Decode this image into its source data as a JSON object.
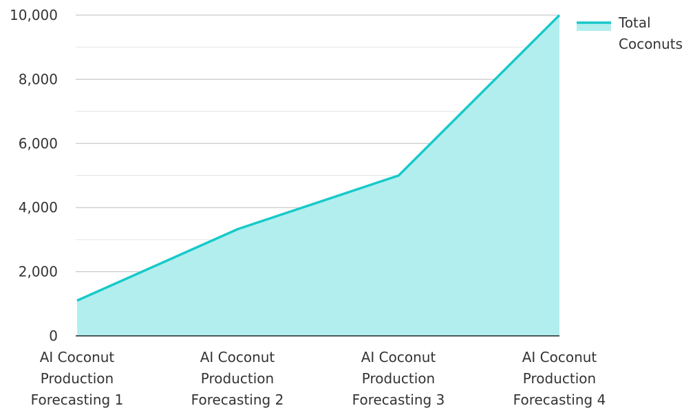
{
  "chart_data": {
    "type": "area",
    "categories": [
      [
        "AI Coconut",
        "Production",
        "Forecasting 1"
      ],
      [
        "AI Coconut",
        "Production",
        "Forecasting 2"
      ],
      [
        "AI Coconut",
        "Production",
        "Forecasting 3"
      ],
      [
        "AI Coconut",
        "Production",
        "Forecasting 4"
      ]
    ],
    "series": [
      {
        "name": "Total Coconuts",
        "name_lines": [
          "Total",
          "Coconuts"
        ],
        "values": [
          1100,
          3330,
          5000,
          10000
        ],
        "line_color": "#17C9C9",
        "fill_color": "#B2EEEE"
      }
    ],
    "ylim": [
      0,
      10000
    ],
    "yticks": [
      0,
      2000,
      4000,
      6000,
      8000,
      10000
    ],
    "ytick_labels": [
      "0",
      "2,000",
      "4,000",
      "6,000",
      "8,000",
      "10,000"
    ],
    "grid": true,
    "legend": "right"
  }
}
